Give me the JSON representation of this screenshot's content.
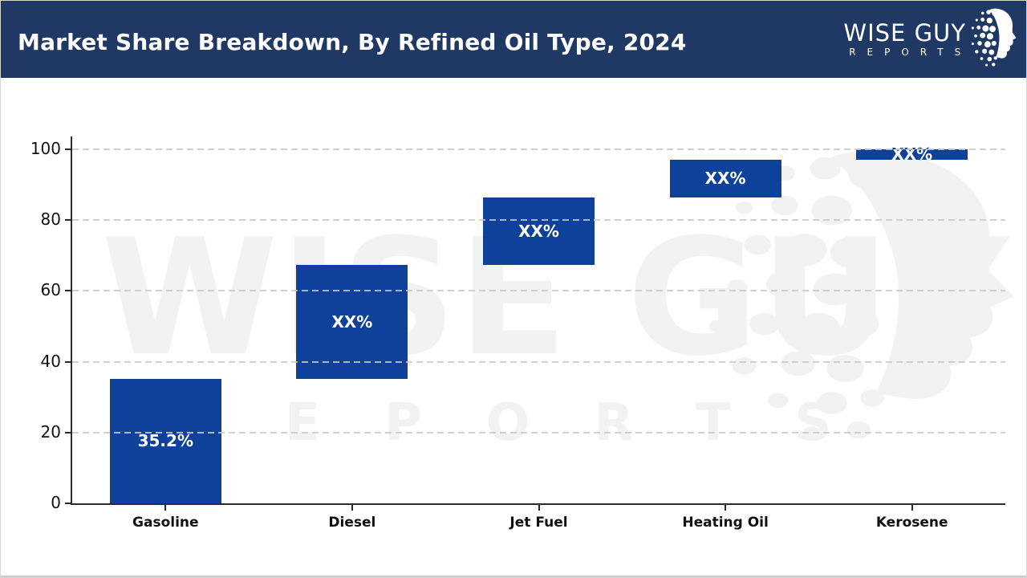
{
  "header": {
    "title": "Market Share Breakdown, By Refined Oil Type, 2024",
    "background": "#1F3864",
    "logo": {
      "line1": "WISE GUY",
      "line2": "REPORTS"
    }
  },
  "watermark": {
    "line1": "WISE GUY",
    "line2": "REPORTS"
  },
  "footer": {
    "rule_color": "#c9c9c9"
  },
  "chart_data": {
    "type": "bar",
    "variant": "waterfall",
    "title": "Market Share Breakdown, By Refined Oil Type, 2024",
    "categories": [
      "Gasoline",
      "Diesel",
      "Jet Fuel",
      "Heating Oil",
      "Kerosene"
    ],
    "segments": [
      {
        "category": "Gasoline",
        "start": 0,
        "end": 35.2,
        "label": "35.2%"
      },
      {
        "category": "Diesel",
        "start": 35.2,
        "end": 67.4,
        "label": "XX%"
      },
      {
        "category": "Jet Fuel",
        "start": 67.4,
        "end": 86.4,
        "label": "XX%"
      },
      {
        "category": "Heating Oil",
        "start": 86.4,
        "end": 97.1,
        "label": "XX%"
      },
      {
        "category": "Kerosene",
        "start": 97.1,
        "end": 100,
        "label": "XX%"
      }
    ],
    "xlabel": "",
    "ylabel": "",
    "yticks": [
      0,
      20,
      40,
      60,
      80,
      100
    ],
    "ylim": [
      0,
      103.6
    ],
    "grid": {
      "horizontal": true,
      "style": "dashed",
      "on_top_of_bars": true
    },
    "legend": "none",
    "colors": {
      "bar": "#0E4199",
      "bar_label_inside": "#ffffff",
      "bar_label_outside": "#0E4199",
      "grid": "#c9c9c9",
      "axis": "#2b2b2b",
      "tick_label": "#111111"
    }
  }
}
